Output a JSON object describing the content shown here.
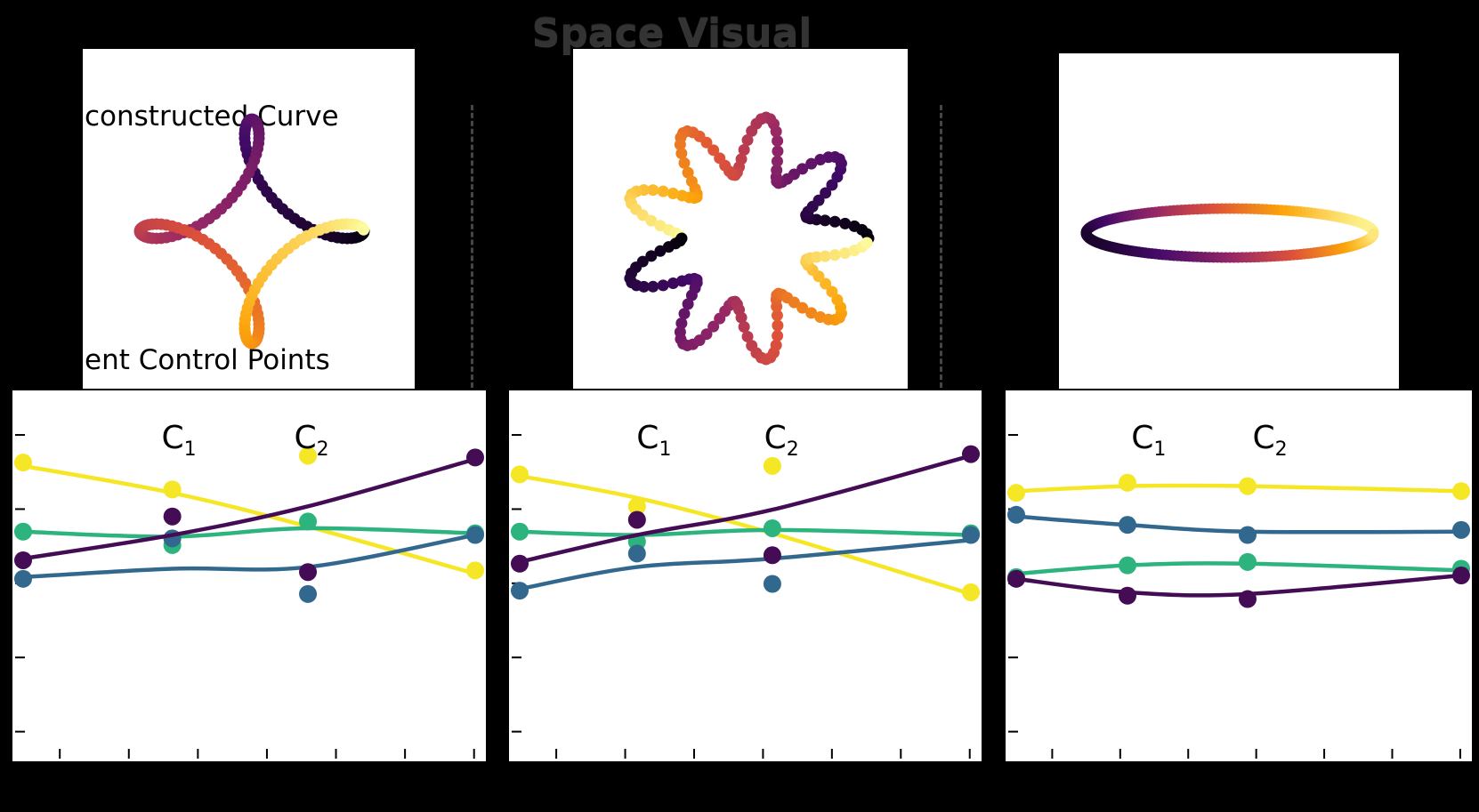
{
  "title": {
    "text": "Space Visual"
  },
  "panels": [
    {
      "top_heading": "constructed Curve",
      "bottom_heading": "ent Control Points"
    },
    {},
    {}
  ],
  "colors": {
    "background": "#000000",
    "panel": "#ffffff",
    "separator": "#454545",
    "axis": "#000000",
    "series": {
      "yellow": "#F5E626",
      "green": "#2DB37D",
      "blue": "#33688E",
      "purple": "#440C54"
    },
    "colormap": [
      "#000004",
      "#420a68",
      "#932667",
      "#dd513a",
      "#fca50a",
      "#fcffa4"
    ]
  },
  "chart_data": [
    {
      "type": "scatter",
      "name": "reconstructed-curve-left",
      "title": "constructed Curve",
      "curve": {
        "kind": "hypotrochoid",
        "A": 0.6,
        "B": 0.3,
        "k": 3,
        "points": 150,
        "color_cycles": 1,
        "dot": 6.5
      }
    },
    {
      "type": "scatter",
      "name": "reconstructed-curve-middle",
      "curve": {
        "kind": "rose",
        "base": 0.7,
        "amp": 0.22,
        "petals": 9,
        "points": 170,
        "color_cycles": 2,
        "dot": 6.5
      }
    },
    {
      "type": "scatter",
      "name": "reconstructed-curve-right",
      "curve": {
        "kind": "ellipse",
        "a": 0.95,
        "b": 0.55,
        "points": 220,
        "phase": 0.3,
        "dot": 6
      }
    },
    {
      "type": "line",
      "name": "latent-control-points-left",
      "labels": [
        {
          "text": "C",
          "sub": "1",
          "x": 0.345
        },
        {
          "text": "C",
          "sub": "2",
          "x": 0.625
        }
      ],
      "x": [
        0,
        0.33,
        0.63,
        1
      ],
      "x_ticks": 7,
      "y_ticks": 5,
      "ylim": [
        0,
        1
      ],
      "series": [
        {
          "color": "yellow",
          "line": [
            0.85,
            0.77,
            0.67,
            0.53
          ],
          "scatter": [
            0.86,
            0.78,
            0.88,
            0.54
          ]
        },
        {
          "color": "green",
          "line": [
            0.655,
            0.64,
            0.665,
            0.65
          ],
          "scatter": [
            0.655,
            0.615,
            0.685,
            0.65
          ]
        },
        {
          "color": "blue",
          "line": [
            0.52,
            0.545,
            0.55,
            0.645
          ],
          "scatter": [
            0.515,
            0.635,
            0.47,
            0.645
          ]
        },
        {
          "color": "purple",
          "line": [
            0.575,
            0.645,
            0.73,
            0.87
          ],
          "scatter": [
            0.57,
            0.7,
            0.535,
            0.875
          ]
        }
      ]
    },
    {
      "type": "line",
      "name": "latent-control-points-middle",
      "labels": [
        {
          "text": "C",
          "sub": "1",
          "x": 0.3
        },
        {
          "text": "C",
          "sub": "2",
          "x": 0.57
        }
      ],
      "x": [
        0,
        0.26,
        0.56,
        1
      ],
      "x_ticks": 7,
      "y_ticks": 5,
      "ylim": [
        0,
        1
      ],
      "series": [
        {
          "color": "yellow",
          "line": [
            0.82,
            0.755,
            0.65,
            0.47
          ],
          "scatter": [
            0.825,
            0.73,
            0.85,
            0.475
          ]
        },
        {
          "color": "green",
          "line": [
            0.655,
            0.645,
            0.66,
            0.645
          ],
          "scatter": [
            0.655,
            0.625,
            0.665,
            0.65
          ]
        },
        {
          "color": "blue",
          "line": [
            0.485,
            0.55,
            0.575,
            0.63
          ],
          "scatter": [
            0.48,
            0.59,
            0.5,
            0.645
          ]
        },
        {
          "color": "purple",
          "line": [
            0.565,
            0.645,
            0.72,
            0.88
          ],
          "scatter": [
            0.56,
            0.69,
            0.585,
            0.885
          ]
        }
      ]
    },
    {
      "type": "line",
      "name": "latent-control-points-right",
      "labels": [
        {
          "text": "C",
          "sub": "1",
          "x": 0.3
        },
        {
          "text": "C",
          "sub": "2",
          "x": 0.56
        }
      ],
      "x": [
        0,
        0.25,
        0.52,
        1
      ],
      "x_ticks": 7,
      "y_ticks": 5,
      "ylim": [
        0,
        1
      ],
      "series": [
        {
          "color": "yellow",
          "line": [
            0.775,
            0.79,
            0.79,
            0.775
          ],
          "scatter": [
            0.77,
            0.8,
            0.79,
            0.775
          ]
        },
        {
          "color": "blue",
          "line": [
            0.7,
            0.675,
            0.655,
            0.655
          ],
          "scatter": [
            0.705,
            0.675,
            0.645,
            0.66
          ]
        },
        {
          "color": "green",
          "line": [
            0.53,
            0.555,
            0.56,
            0.54
          ],
          "scatter": [
            0.52,
            0.555,
            0.565,
            0.545
          ]
        },
        {
          "color": "purple",
          "line": [
            0.515,
            0.475,
            0.47,
            0.525
          ],
          "scatter": [
            0.515,
            0.465,
            0.455,
            0.525
          ]
        }
      ]
    }
  ]
}
